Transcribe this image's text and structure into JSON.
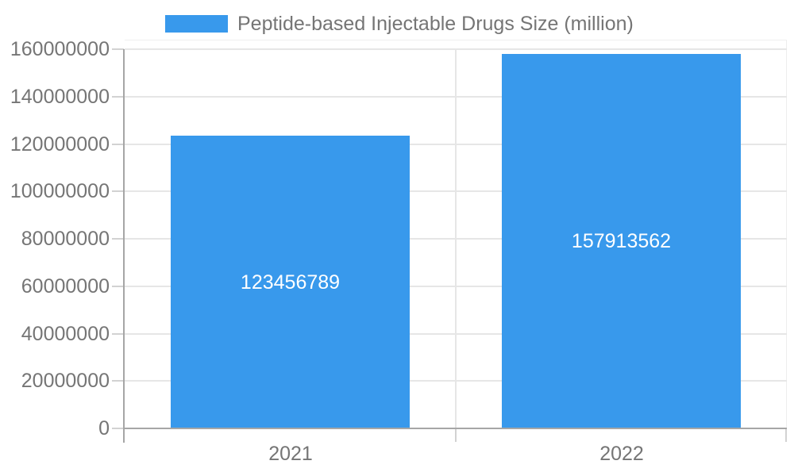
{
  "chart_data": {
    "type": "bar",
    "title": "",
    "xlabel": "",
    "ylabel": "",
    "categories": [
      "2021",
      "2022"
    ],
    "series": [
      {
        "name": "Peptide-based Injectable Drugs Size (million)",
        "values": [
          123456789,
          157913562
        ],
        "color": "#3899EC"
      }
    ],
    "value_labels": [
      "123456789",
      "157913562"
    ],
    "value_label_color": "#ffffff",
    "y_ticks": [
      0,
      20000000,
      40000000,
      60000000,
      80000000,
      100000000,
      120000000,
      140000000,
      160000000
    ],
    "ylim": [
      0,
      160000000
    ],
    "grid": true,
    "legend_position": "top",
    "axis_label_color": "#757575"
  }
}
